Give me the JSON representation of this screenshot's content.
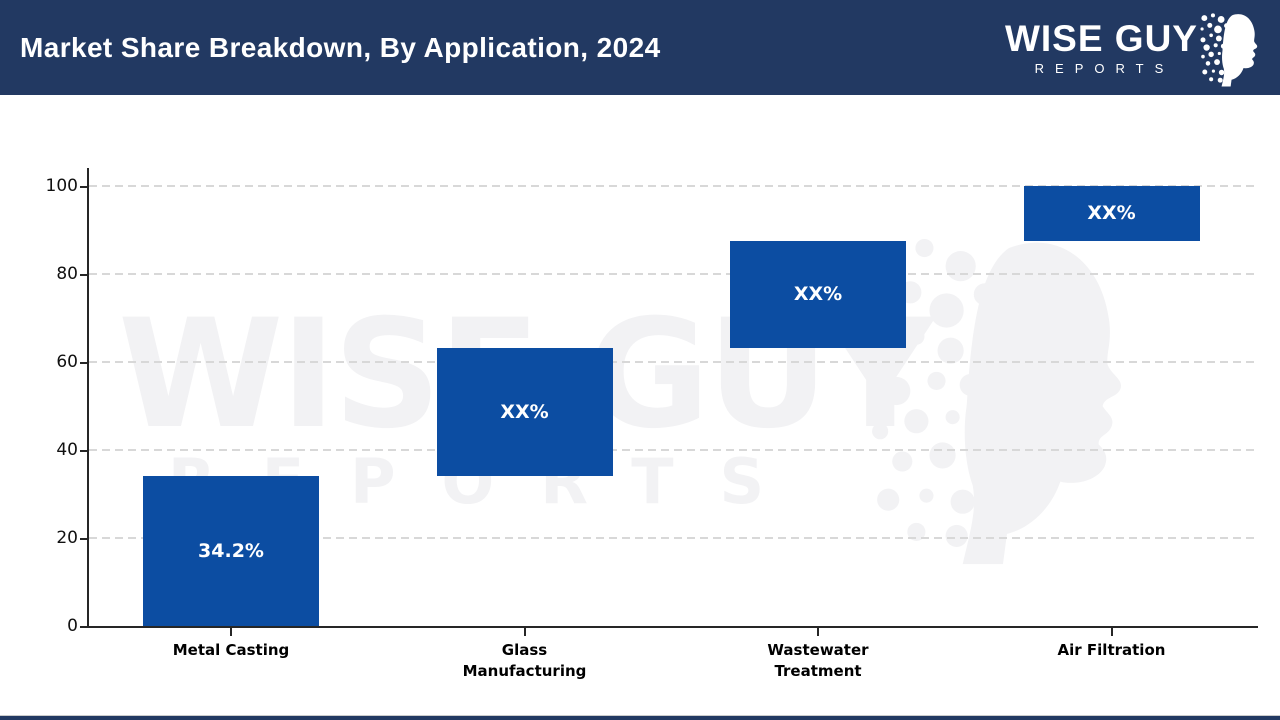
{
  "header": {
    "title": "Market Share Breakdown, By Application, 2024",
    "logo": {
      "line1": "WISE GUY",
      "line2": "REPORTS"
    }
  },
  "watermark": {
    "line1": "WISE GUY",
    "line2": "REPORTS"
  },
  "colors": {
    "header_bg": "#223962",
    "bar": "#0c4da2",
    "gridline": "#d8d8d8",
    "axis": "#262626",
    "watermark": "#f2f2f4",
    "value_label": "#ffffff"
  },
  "chart_data": {
    "type": "bar",
    "variant": "stacked-percentage-waterfall",
    "title": "Market Share Breakdown, By Application, 2024",
    "categories": [
      "Metal Casting",
      "Glass Manufacturing",
      "Wastewater Treatment",
      "Air Filtration"
    ],
    "category_label_lines": [
      [
        "Metal Casting"
      ],
      [
        "Glass",
        "Manufacturing"
      ],
      [
        "Wastewater",
        "Treatment"
      ],
      [
        "Air Filtration"
      ]
    ],
    "bars": [
      {
        "category": "Metal Casting",
        "start": 0,
        "end": 34.2,
        "label": "34.2%"
      },
      {
        "category": "Glass Manufacturing",
        "start": 34.2,
        "end": 63.2,
        "label": "XX%"
      },
      {
        "category": "Wastewater Treatment",
        "start": 63.2,
        "end": 87.6,
        "label": "XX%"
      },
      {
        "category": "Air Filtration",
        "start": 87.6,
        "end": 100,
        "label": "XX%"
      }
    ],
    "ylim": [
      0,
      104
    ],
    "yticks": [
      0,
      20,
      40,
      60,
      80,
      100
    ],
    "xlabel": "",
    "ylabel": "",
    "grid": {
      "axis": "y",
      "style": "dashed"
    },
    "legend": "none"
  }
}
